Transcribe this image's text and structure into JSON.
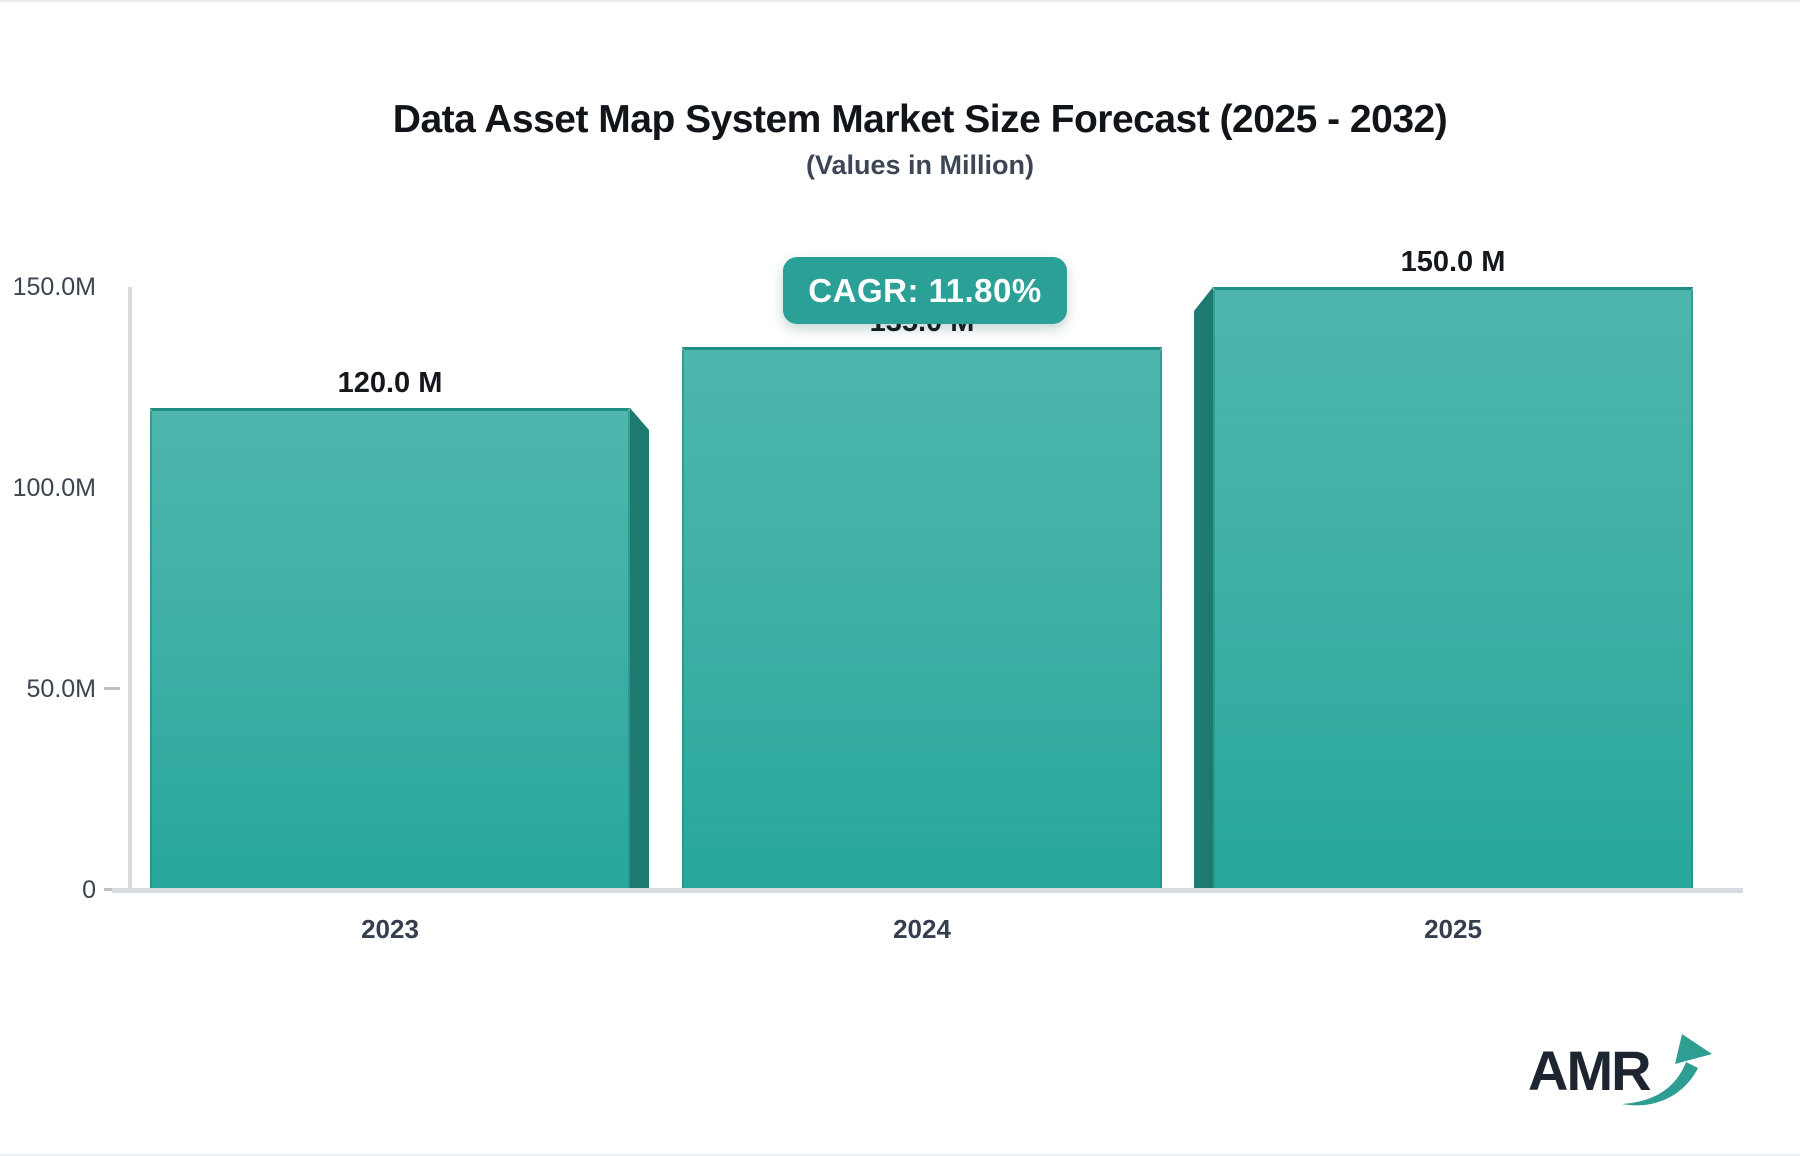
{
  "header": {
    "title": "Data Asset Map System Market Size Forecast (2025 - 2032)",
    "subtitle": "(Values in Million)"
  },
  "cagr_badge": {
    "label": "CAGR: 11.80%",
    "color": "#2aa096"
  },
  "chart_data": {
    "type": "bar",
    "title": "Data Asset Map System Market Size Forecast (2025 - 2032)",
    "subtitle": "(Values in Million)",
    "categories": [
      "2023",
      "2024",
      "2025"
    ],
    "values": [
      120.0,
      135.0,
      150.0
    ],
    "bar_labels": [
      "120.0 M",
      "135.0 M",
      "150.0 M"
    ],
    "unit": "Million",
    "xlabel": "",
    "ylabel": "",
    "ylim": [
      0,
      150
    ],
    "grid": false,
    "legend": "none",
    "y_ticks": [
      {
        "label": "150.0M",
        "value": 150,
        "dash": false
      },
      {
        "label": "100.0M",
        "value": 100,
        "dash": false
      },
      {
        "label": "50.0M",
        "value": 50,
        "dash": true
      },
      {
        "label": "0",
        "value": 0,
        "dash": true
      }
    ],
    "annotation": "CAGR: 11.80%",
    "bar_color_top": "#4eb6ad",
    "bar_color_bottom": "#28a79b",
    "bar_edge_color": "#1f8e84",
    "bevel_color": "#1e7a70",
    "layout_hints": {
      "bevel_sides": [
        "right",
        "none",
        "left"
      ],
      "value_label_position": "above-bar"
    }
  },
  "logo": {
    "text": "AMR",
    "arrow_color": "#2e9e92"
  }
}
